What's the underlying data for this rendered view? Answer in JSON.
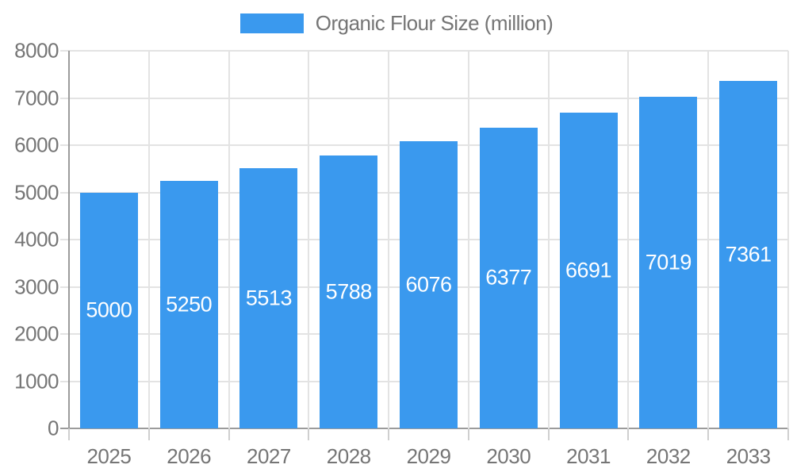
{
  "chart_data": {
    "type": "bar",
    "title": "Organic Flour Size (million)",
    "categories": [
      "2025",
      "2026",
      "2027",
      "2028",
      "2029",
      "2030",
      "2031",
      "2032",
      "2033"
    ],
    "values": [
      5000,
      5250,
      5513,
      5788,
      6076,
      6377,
      6691,
      7019,
      7361
    ],
    "xlabel": "",
    "ylabel": "",
    "ylim": [
      0,
      8000
    ],
    "y_tick_step": 1000,
    "y_tick_labels": [
      "0",
      "1000",
      "2000",
      "3000",
      "4000",
      "5000",
      "6000",
      "7000",
      "8000"
    ],
    "grid": "on",
    "legend_position": "top-center",
    "value_label_position": "inside-middle",
    "colors": {
      "bar": "#3a99ee",
      "bar_value_text": "#ffffff",
      "axis_text": "#757575",
      "gridline": "#e3e3e3",
      "axis_line": "#9b9b9b",
      "tick": "#cfcfcf",
      "background": "#ffffff"
    }
  }
}
